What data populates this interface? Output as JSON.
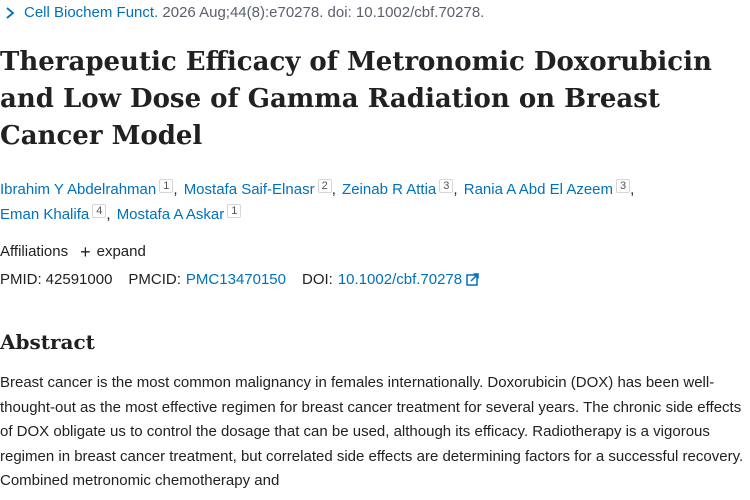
{
  "citation": {
    "journal": "Cell Biochem Funct.",
    "details": "2026 Aug;44(8):e70278. doi: 10.1002/cbf.70278."
  },
  "title": "Therapeutic Efficacy of Metronomic Doxorubicin and Low Dose of Gamma Radiation on Breast Cancer Model",
  "authors": [
    {
      "name": "Ibrahim Y Abdelrahman",
      "aff": "1"
    },
    {
      "name": "Mostafa Saif-Elnasr",
      "aff": "2"
    },
    {
      "name": "Zeinab R Attia",
      "aff": "3"
    },
    {
      "name": "Rania A Abd El Azeem",
      "aff": "3"
    },
    {
      "name": "Eman Khalifa",
      "aff": "4"
    },
    {
      "name": "Mostafa A Askar",
      "aff": "1"
    }
  ],
  "affiliations": {
    "label": "Affiliations",
    "expand_label": "expand"
  },
  "identifiers": {
    "pmid_label": "PMID:",
    "pmid": "42591000",
    "pmcid_label": "PMCID:",
    "pmcid": "PMC13470150",
    "doi_label": "DOI:",
    "doi": "10.1002/cbf.70278"
  },
  "abstract": {
    "heading": "Abstract",
    "text": "Breast cancer is the most common malignancy in females internationally. Doxorubicin (DOX) has been well-thought-out as the most effective regimen for breast cancer treatment for several years. The chronic side effects of DOX obligate us to control the dosage that can be used, although its efficacy. Radiotherapy is a vigorous regimen in breast cancer treatment, but correlated side effects are determining factors for a successful recovery. Combined metronomic chemotherapy and"
  },
  "colors": {
    "link": "#0071bc",
    "text": "#212121",
    "muted": "#5b616b"
  }
}
